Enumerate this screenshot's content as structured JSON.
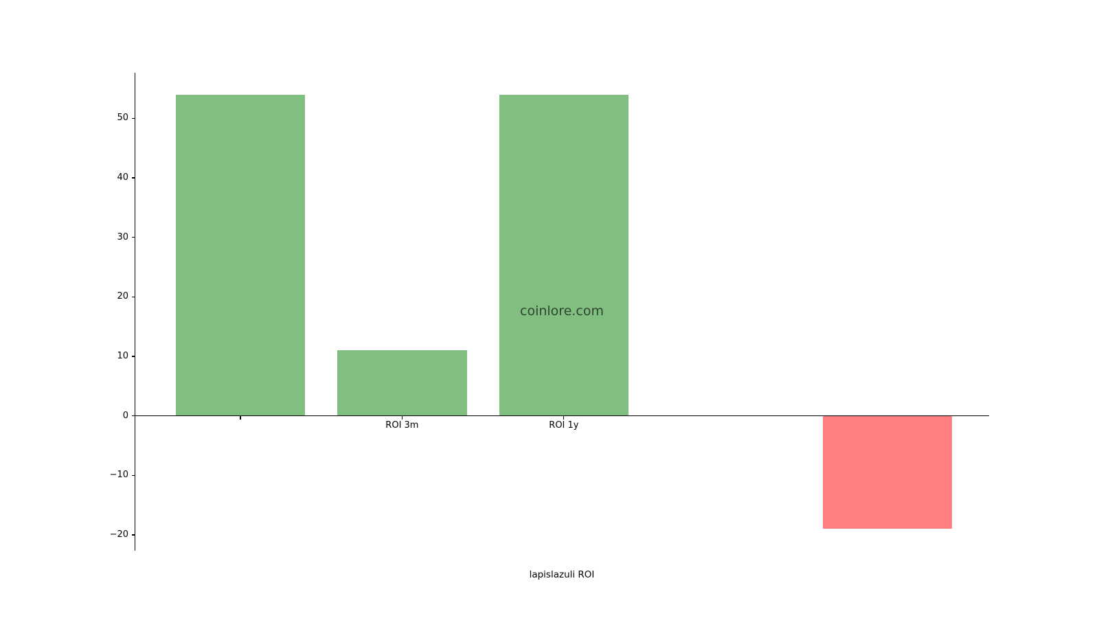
{
  "chart_data": {
    "type": "bar",
    "title": "",
    "xlabel": "lapislazuli ROI",
    "ylabel": "",
    "watermark": "coinlore.com",
    "categories": [
      "",
      "ROI 3m",
      "ROI 1y",
      "",
      ""
    ],
    "values": [
      54,
      11,
      54,
      0,
      -19
    ],
    "series": [
      {
        "name": "lapislazuli ROI",
        "values": [
          54,
          11,
          54,
          0,
          -19
        ]
      }
    ],
    "positive_color": "#80BF80",
    "negative_color": "#FF8080",
    "axis_color": "#000000",
    "text_color": "#000000",
    "bar_width": 0.8,
    "xlim": [
      -0.65,
      4.63
    ],
    "ylim": [
      -22.65,
      57.65
    ],
    "yticks": [
      {
        "value": 50,
        "label": "50"
      },
      {
        "value": 40,
        "label": "40"
      },
      {
        "value": 30,
        "label": "30"
      },
      {
        "value": 20,
        "label": "20"
      },
      {
        "value": 10,
        "label": "10"
      },
      {
        "value": 0,
        "label": "0"
      },
      {
        "value": -10,
        "label": "−10"
      },
      {
        "value": -20,
        "label": "−20"
      }
    ],
    "xticks": [
      {
        "pos": 0,
        "label": ""
      },
      {
        "pos": 1,
        "label": "ROI 3m"
      },
      {
        "pos": 2,
        "label": "ROI 1y"
      }
    ],
    "grid": false,
    "legend": null
  }
}
